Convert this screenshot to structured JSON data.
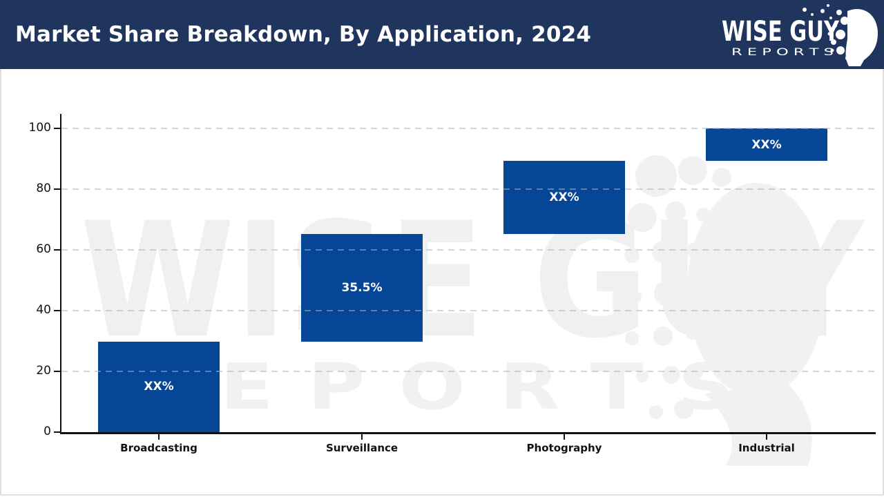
{
  "header": {
    "title": "Market Share Breakdown, By Application, 2024",
    "bg_color": "#1f355e",
    "logo": {
      "line1": "WISE GUY",
      "line2": "R E P O R T S"
    }
  },
  "watermark": {
    "line1": "WISE GUY",
    "line2": "REPORTS"
  },
  "chart_data": {
    "type": "bar",
    "subtype": "floating-segment-waterfall",
    "title": "Market Share Breakdown, By Application, 2024",
    "categories": [
      "Broadcasting",
      "Surveillance",
      "Photography",
      "Industrial"
    ],
    "segments": [
      {
        "category": "Broadcasting",
        "start": 0,
        "end": 29.8,
        "value": 29.8,
        "label": "XX%"
      },
      {
        "category": "Surveillance",
        "start": 29.8,
        "end": 65.3,
        "value": 35.5,
        "label": "35.5%"
      },
      {
        "category": "Photography",
        "start": 65.3,
        "end": 89.3,
        "value": 24.0,
        "label": "XX%"
      },
      {
        "category": "Industrial",
        "start": 89.3,
        "end": 100.0,
        "value": 10.7,
        "label": "XX%"
      }
    ],
    "xlabel": "",
    "ylabel": "",
    "ylim": [
      0,
      100
    ],
    "yticks": [
      0,
      20,
      40,
      60,
      80,
      100
    ],
    "grid": {
      "axis": "y",
      "style": "dashed"
    },
    "legend": "none",
    "bar_color": "#054696",
    "bar_label_color": "#ffffff",
    "axis_color": "#111111"
  }
}
